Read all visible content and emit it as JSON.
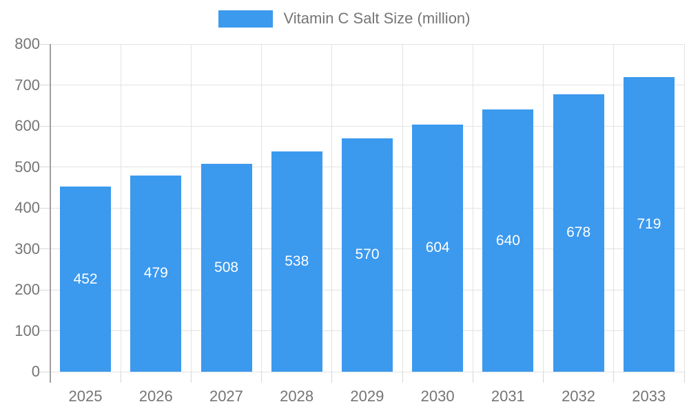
{
  "chart_data": {
    "type": "bar",
    "title": "Vitamin C Salt Size (million)",
    "categories": [
      "2025",
      "2026",
      "2027",
      "2028",
      "2029",
      "2030",
      "2031",
      "2032",
      "2033"
    ],
    "values": [
      452,
      479,
      508,
      538,
      570,
      604,
      640,
      678,
      719
    ],
    "xlabel": "",
    "ylabel": "",
    "ylim": [
      0,
      800
    ],
    "ytick_interval": 100,
    "ytick_labels": [
      "0",
      "100",
      "200",
      "300",
      "400",
      "500",
      "600",
      "700",
      "800"
    ],
    "grid": true,
    "legend_position": "top-center",
    "value_label_position": "inside-center",
    "colors": {
      "bar": "#3B99EE",
      "bar_value_text": "#ffffff",
      "axis_text": "#757575",
      "gridline": "#e2e2e2",
      "tick": "#d6d6d6",
      "y_axis_line": "#9e9e9e",
      "background": "#ffffff"
    }
  }
}
